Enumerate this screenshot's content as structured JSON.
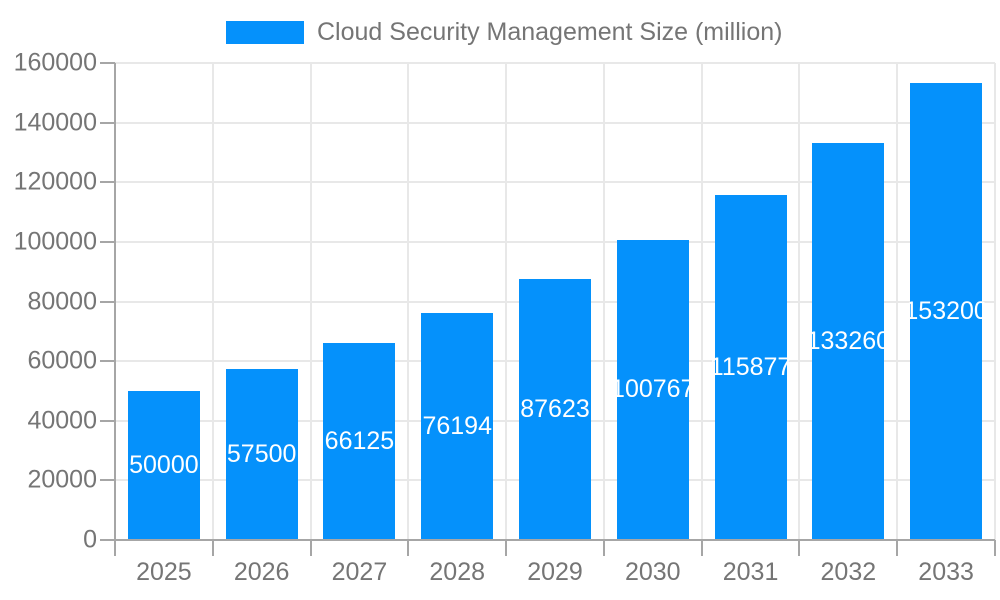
{
  "chart_data": {
    "type": "bar",
    "title": "Cloud Security Management Size (million)",
    "categories": [
      "2025",
      "2026",
      "2027",
      "2028",
      "2029",
      "2030",
      "2031",
      "2032",
      "2033"
    ],
    "values": [
      50000,
      57500,
      66125,
      76194,
      87623,
      100767,
      115877,
      133260,
      153200
    ],
    "xlabel": "",
    "ylabel": "",
    "ylim": [
      0,
      160000
    ],
    "y_ticks": [
      0,
      20000,
      40000,
      60000,
      80000,
      100000,
      120000,
      140000,
      160000
    ],
    "grid": true,
    "legend_position": "top",
    "value_labels": "white text centered inside bars"
  },
  "colors": {
    "bar": "#0591fb",
    "bar_label_text": "#ffffff",
    "axis_label_text": "#757575",
    "legend_text": "#757575",
    "gridline": "#e8e8e8",
    "axis_line": "#a6a6a6",
    "background": "#ffffff"
  }
}
